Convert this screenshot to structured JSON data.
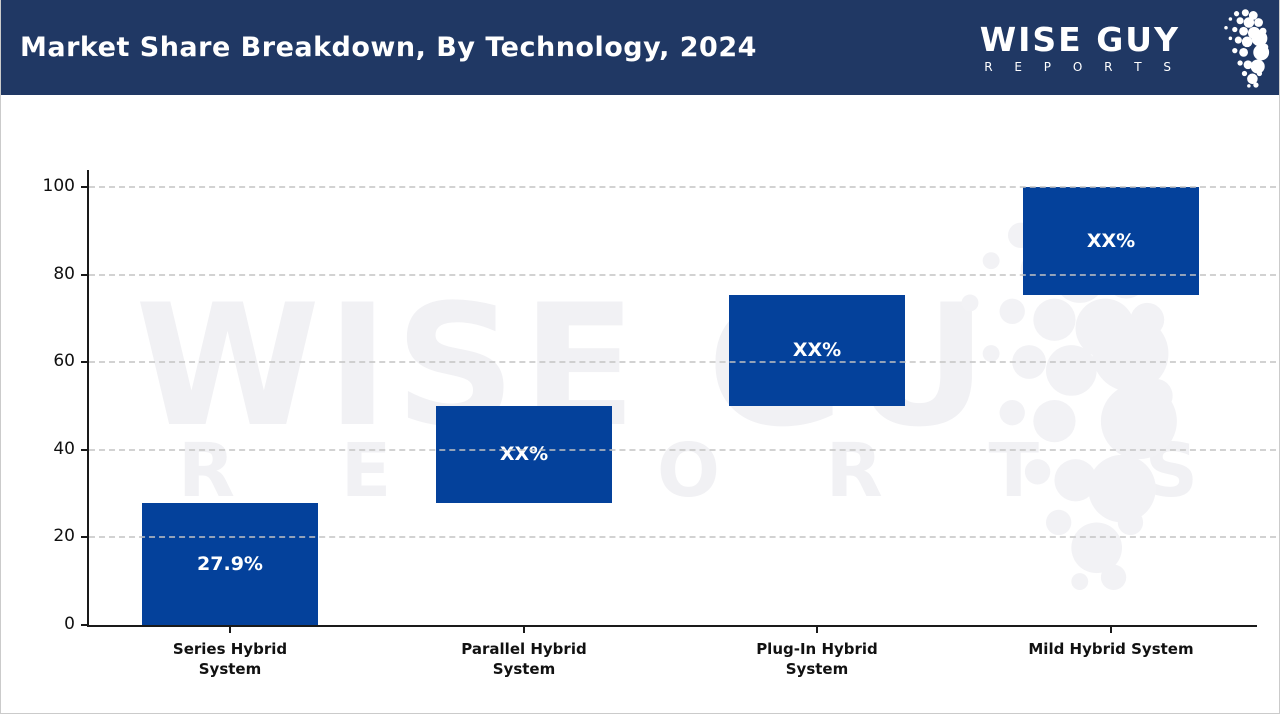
{
  "header": {
    "title": "Market Share Breakdown, By Technology, 2024",
    "logo_line1": "WISE GUY",
    "logo_line2": "R E P O R T S"
  },
  "watermark": {
    "line1": "WISE GU",
    "line2": "R E P O R T S"
  },
  "chart_data": {
    "type": "bar",
    "subtype": "waterfall",
    "title": "Market Share Breakdown, By Technology, 2024",
    "categories": [
      "Series Hybrid\nSystem",
      "Parallel Hybrid\nSystem",
      "Plug-In Hybrid\nSystem",
      "Mild Hybrid System"
    ],
    "segments": [
      {
        "category": "Series Hybrid System",
        "start": 0,
        "end": 27.9,
        "label": "27.9%"
      },
      {
        "category": "Parallel Hybrid System",
        "start": 27.9,
        "end": 50.0,
        "label": "XX%"
      },
      {
        "category": "Plug-In Hybrid System",
        "start": 50.0,
        "end": 75.4,
        "label": "XX%"
      },
      {
        "category": "Mild Hybrid System",
        "start": 75.4,
        "end": 100.0,
        "label": "XX%"
      }
    ],
    "yticks": [
      0,
      20,
      40,
      60,
      80,
      100
    ],
    "ylim": [
      0,
      104
    ],
    "xlabel": "",
    "ylabel": "",
    "grid": "horizontal-dashed",
    "legend": "none"
  },
  "colors": {
    "header_bg": "#203864",
    "bar": "#04419b",
    "bar_label": "#ffffff",
    "grid": "#c3c3c3",
    "axis": "#1a1a1a",
    "watermark": "#f1f1f4"
  }
}
